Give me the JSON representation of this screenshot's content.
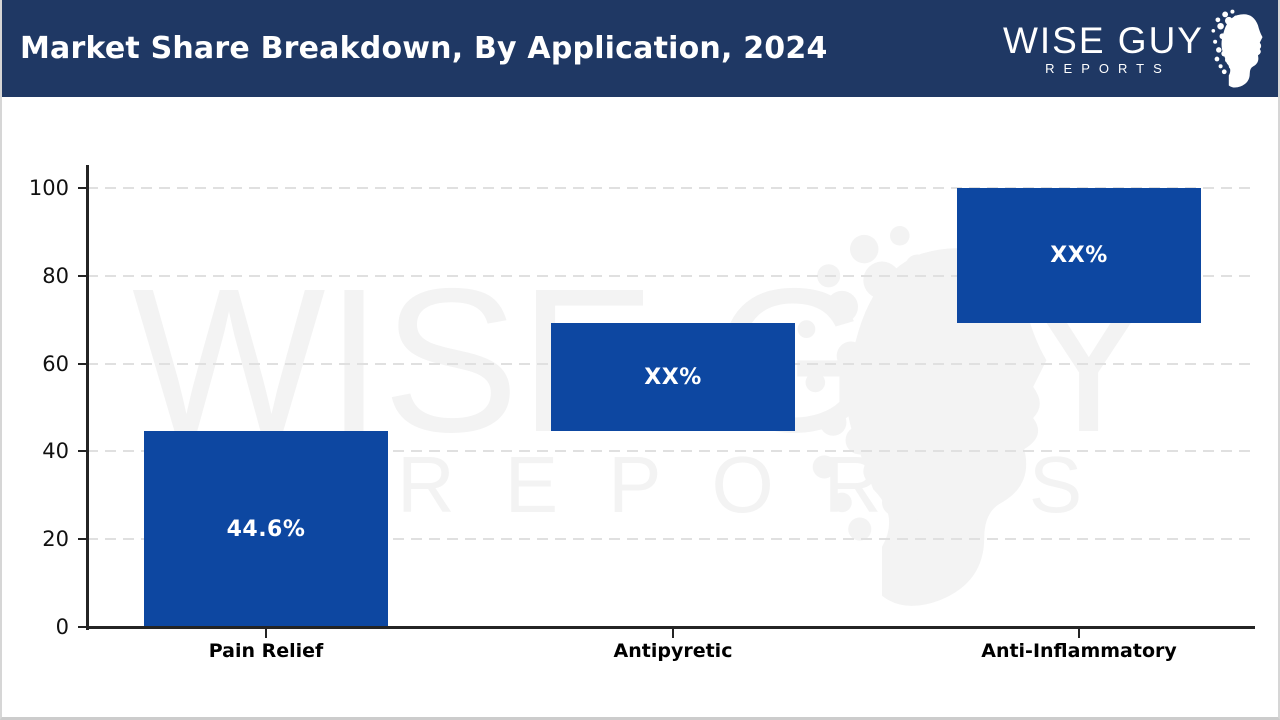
{
  "header": {
    "title": "Market Share Breakdown, By Application, 2024",
    "logo": {
      "line1": "WISE GUY",
      "line2": "REPORTS"
    }
  },
  "watermark": {
    "line1": "WISE GUY",
    "line2": "REPORTS"
  },
  "chart_data": {
    "type": "bar",
    "subtype": "floating-waterfall",
    "title": "Market Share Breakdown, By Application, 2024",
    "categories": [
      "Pain Relief",
      "Antipyretic",
      "Anti-Inflammatory"
    ],
    "bars": [
      {
        "category": "Pain Relief",
        "start": 0,
        "end": 44.6,
        "label": "44.6%"
      },
      {
        "category": "Antipyretic",
        "start": 44.6,
        "end": 69.2,
        "label": "XX%"
      },
      {
        "category": "Anti-Inflammatory",
        "start": 69.2,
        "end": 100,
        "label": "XX%"
      }
    ],
    "yticks": [
      0,
      20,
      40,
      60,
      80,
      100
    ],
    "ylim": [
      0,
      105
    ],
    "xlabel": "",
    "ylabel": "",
    "grid": "dashed-horizontal",
    "legend": "none",
    "bar_color": "#0d47a1",
    "bar_label_color": "#ffffff"
  },
  "colors": {
    "header_bg": "#1f3864",
    "bar": "#0d47a1",
    "grid": "#e0e0e0",
    "axis": "#242424",
    "watermark": "#f3f3f3"
  }
}
